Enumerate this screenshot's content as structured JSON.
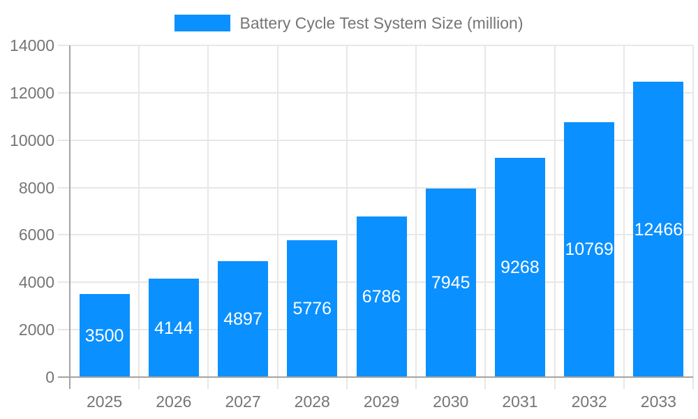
{
  "legend": {
    "label": "Battery Cycle Test System Size (million)"
  },
  "chart_data": {
    "type": "bar",
    "title": "Battery Cycle Test System Size (million)",
    "categories": [
      "2025",
      "2026",
      "2027",
      "2028",
      "2029",
      "2030",
      "2031",
      "2032",
      "2033"
    ],
    "values": [
      3500,
      4144,
      4897,
      5776,
      6786,
      7945,
      9268,
      10769,
      12466
    ],
    "xlabel": "",
    "ylabel": "",
    "ylim": [
      0,
      14000
    ],
    "ytick_step": 2000,
    "ytick_labels": [
      "0",
      "2000",
      "4000",
      "6000",
      "8000",
      "10000",
      "12000",
      "14000"
    ],
    "grid": true,
    "legend_position": "top",
    "value_labels": "inside-center-white"
  },
  "colors": {
    "bar": "#0b90ff",
    "value_label": "#ffffff",
    "axis_line": "#a3a3a3",
    "gridline": "#e7e7e7",
    "text": "#757575",
    "background": "#ffffff"
  }
}
